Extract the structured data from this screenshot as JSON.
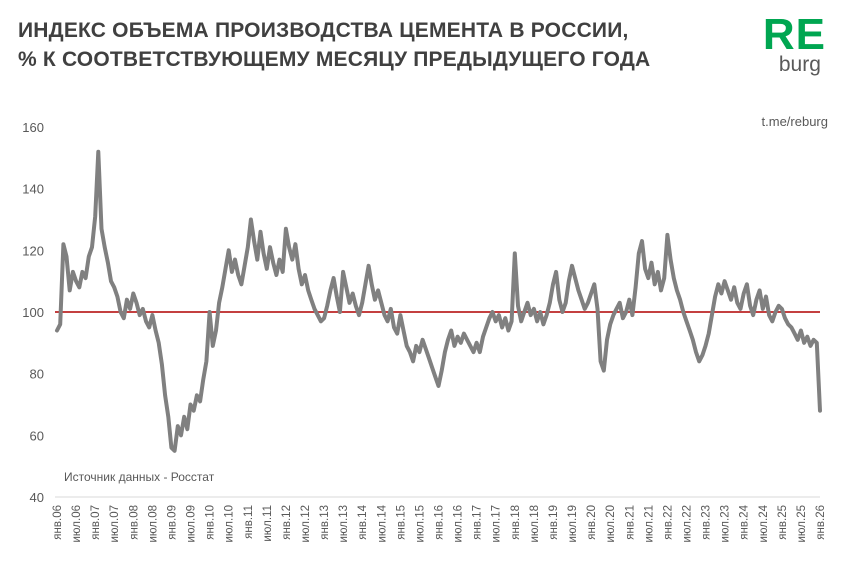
{
  "header": {
    "title_line1": "ИНДЕКС ОБЪЕМА ПРОИЗВОДСТВА ЦЕМЕНТА В РОССИИ,",
    "title_line2": "% К СООТВЕТСТВУЮЩЕМУ МЕСЯЦУ ПРЕДЫДУЩЕГО ГОДА",
    "logo": {
      "top": "RE",
      "bottom": "burg"
    },
    "telegram": "t.me/reburg"
  },
  "footer": {
    "source": "Источник данных  - Росстат"
  },
  "colors": {
    "line": "#808080",
    "reference": "#b00000",
    "axis": "#d9d9d9",
    "brand_green": "#00a651",
    "text_gray": "#595959",
    "title_gray": "#404040"
  },
  "chart_data": {
    "type": "line",
    "title": "Индекс объема производства цемента в России, % к соответствующему месяцу предыдущего года",
    "frequency": "monthly",
    "x_start_label": "янв.06",
    "x_end_label": "янв.26",
    "ylim": [
      40,
      160
    ],
    "yticks": [
      40,
      60,
      80,
      100,
      120,
      140,
      160
    ],
    "grid": false,
    "legend": false,
    "reference_line": {
      "value": 100
    },
    "xtick_labels": [
      "янв.06",
      "июл.06",
      "янв.07",
      "июл.07",
      "янв.08",
      "июл.08",
      "янв.09",
      "июл.09",
      "янв.10",
      "июл.10",
      "янв.11",
      "июл.11",
      "янв.12",
      "июл.12",
      "янв.13",
      "июл.13",
      "янв.14",
      "июл.14",
      "янв.15",
      "июл.15",
      "янв.16",
      "июл.16",
      "янв.17",
      "июл.17",
      "янв.18",
      "июл.18",
      "янв.19",
      "июл.19",
      "янв.20",
      "июл.20",
      "янв.21",
      "июл.21",
      "янв.22",
      "июл.22",
      "янв.23",
      "июл.23",
      "янв.24",
      "июл.24",
      "янв.25",
      "июл.25",
      "янв.26"
    ],
    "series": [
      {
        "name": "Индекс производства цемента, % к соответствующему месяцу предыдущего года",
        "values": [
          94,
          96,
          122,
          118,
          107,
          113,
          110,
          108,
          113,
          111,
          118,
          121,
          131,
          152,
          127,
          121,
          116,
          110,
          108,
          105,
          100,
          98,
          104,
          101,
          106,
          103,
          99,
          101,
          97,
          95,
          99,
          94,
          90,
          83,
          73,
          66,
          56,
          55,
          63,
          60,
          66,
          62,
          70,
          68,
          73,
          71,
          78,
          84,
          100,
          89,
          94,
          103,
          108,
          114,
          120,
          113,
          117,
          112,
          109,
          115,
          121,
          130,
          123,
          117,
          126,
          119,
          114,
          121,
          116,
          112,
          117,
          113,
          127,
          121,
          117,
          122,
          114,
          109,
          112,
          107,
          104,
          101,
          99,
          97,
          98,
          102,
          107,
          111,
          105,
          100,
          113,
          108,
          103,
          106,
          102,
          99,
          103,
          109,
          115,
          109,
          104,
          107,
          103,
          99,
          97,
          101,
          95,
          93,
          99,
          94,
          89,
          87,
          84,
          89,
          87,
          91,
          88,
          85,
          82,
          79,
          76,
          81,
          87,
          91,
          94,
          89,
          92,
          90,
          93,
          91,
          89,
          87,
          90,
          87,
          92,
          95,
          98,
          100,
          97,
          99,
          95,
          98,
          94,
          97,
          119,
          102,
          97,
          100,
          103,
          99,
          101,
          97,
          100,
          96,
          99,
          103,
          109,
          113,
          104,
          100,
          103,
          110,
          115,
          111,
          107,
          104,
          101,
          103,
          106,
          109,
          101,
          84,
          81,
          91,
          96,
          99,
          101,
          103,
          98,
          100,
          104,
          99,
          108,
          119,
          123,
          114,
          111,
          116,
          109,
          113,
          107,
          111,
          125,
          117,
          111,
          107,
          104,
          100,
          97,
          94,
          91,
          87,
          84,
          86,
          89,
          93,
          99,
          105,
          109,
          106,
          110,
          107,
          104,
          108,
          103,
          101,
          106,
          109,
          102,
          99,
          104,
          107,
          101,
          105,
          99,
          97,
          100,
          102,
          101,
          98,
          96,
          95,
          93,
          91,
          94,
          90,
          92,
          89,
          91,
          90,
          68
        ]
      }
    ]
  }
}
